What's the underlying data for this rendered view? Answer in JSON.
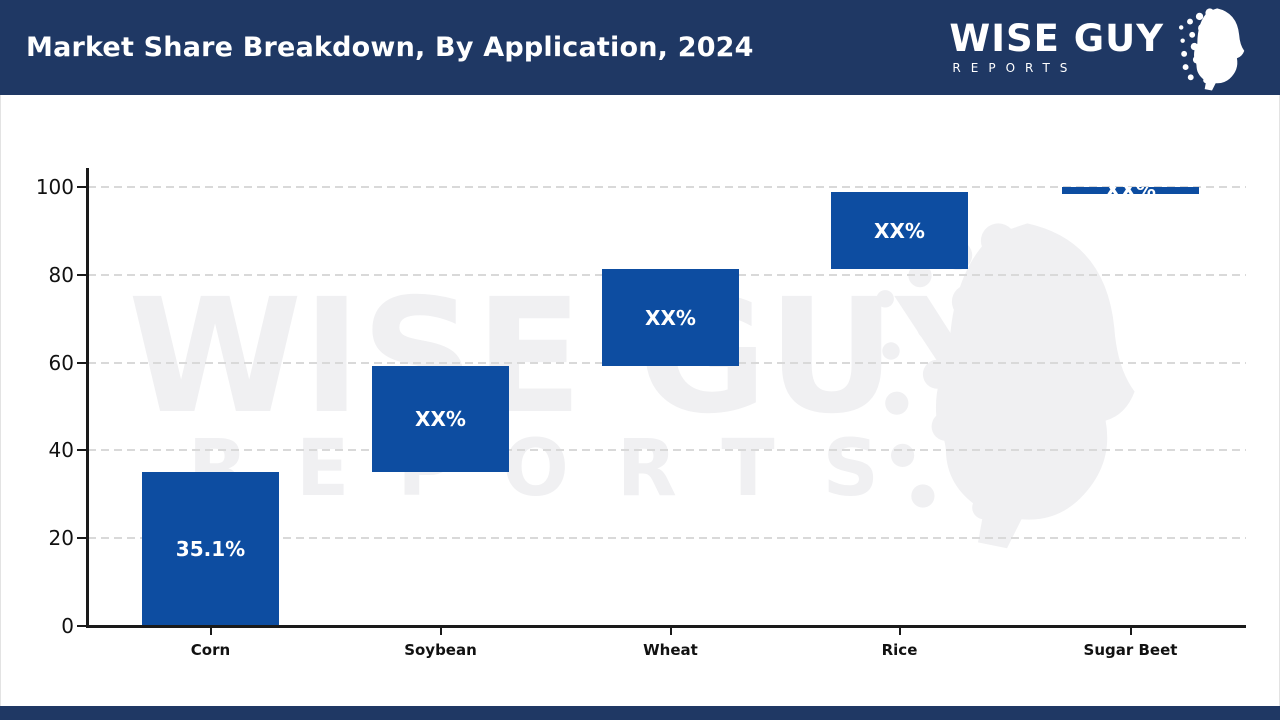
{
  "header": {
    "title": "Market Share Breakdown, By Application, 2024",
    "logo": {
      "line1": "WISE GUY",
      "line2": "REPORTS"
    },
    "bg_color": "#1f3864"
  },
  "watermark": {
    "line1": "WISE GUY",
    "line2": "REPORTS"
  },
  "footer": {
    "bg_color": "#1f3864"
  },
  "chart_data": {
    "type": "bar",
    "subtype": "waterfall",
    "title": "Market Share Breakdown, By Application, 2024",
    "categories": [
      "Corn",
      "Soybean",
      "Wheat",
      "Rice",
      "Sugar Beet"
    ],
    "segments": [
      {
        "category": "Corn",
        "start": 0,
        "end": 35.1,
        "label": "35.1%"
      },
      {
        "category": "Soybean",
        "start": 35.1,
        "end": 59.2,
        "label": "XX%"
      },
      {
        "category": "Wheat",
        "start": 59.2,
        "end": 81.3,
        "label": "XX%"
      },
      {
        "category": "Rice",
        "start": 81.3,
        "end": 98.8,
        "label": "XX%"
      },
      {
        "category": "Sugar Beet",
        "start": 98.8,
        "end": 100,
        "label": "XX%"
      }
    ],
    "xlabel": "",
    "ylabel": "",
    "y_ticks": [
      0,
      20,
      40,
      60,
      80,
      100
    ],
    "ylim": [
      0,
      104
    ],
    "grid": "horizontal dashed",
    "legend": "none",
    "bar_color": "#0d4da1",
    "bar_label_color": "#ffffff",
    "axis_color": "#1a1a1a",
    "gridline_color": "#d9d9d9"
  }
}
